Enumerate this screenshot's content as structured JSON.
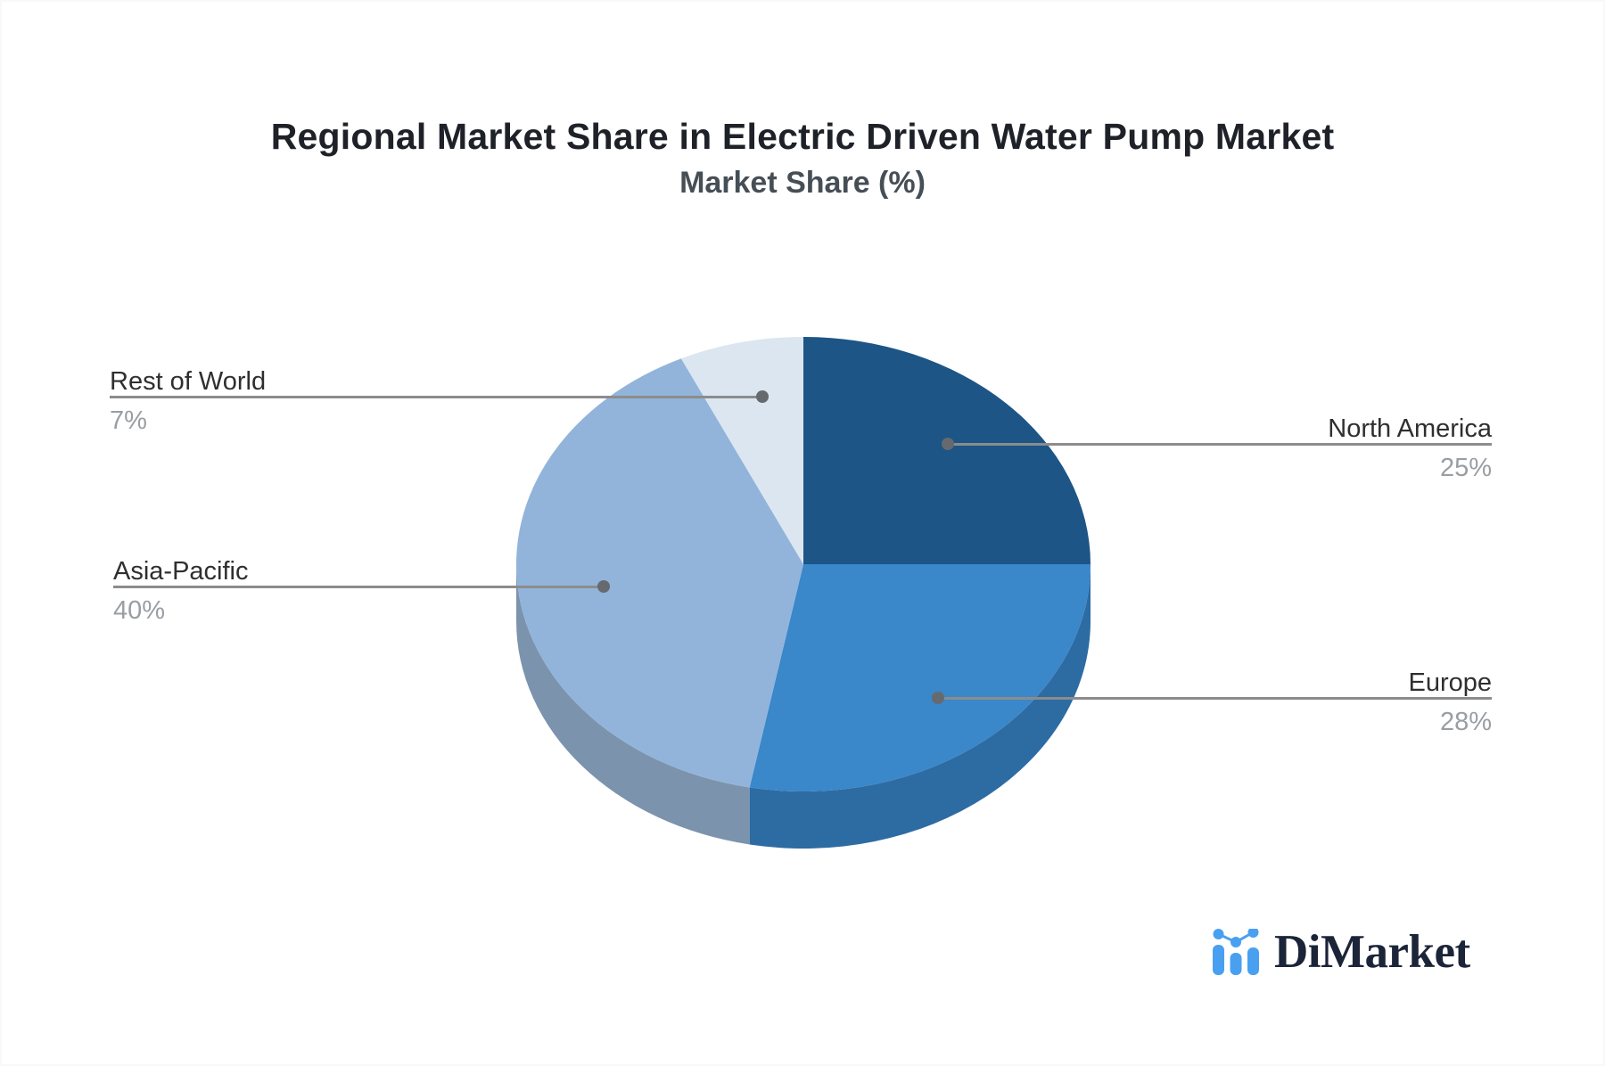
{
  "header": {
    "title": "Regional Market Share in Electric Driven Water Pump Market",
    "subtitle": "Market Share (%)"
  },
  "chart_data": {
    "type": "pie",
    "title": "Regional Market Share in Electric Driven Water Pump Market",
    "subtitle": "Market Share (%)",
    "unit": "percent",
    "style": "3d",
    "start_angle_deg": 0,
    "direction": "clockwise",
    "legend": "callout-labels",
    "slices": [
      {
        "label": "North America",
        "value": 25,
        "value_label": "25%",
        "color": "#1c5586",
        "side_color": "#164468"
      },
      {
        "label": "Europe",
        "value": 28,
        "value_label": "28%",
        "color": "#3a87c9",
        "side_color": "#2d6ba3"
      },
      {
        "label": "Asia-Pacific",
        "value": 40,
        "value_label": "40%",
        "color": "#92b4da",
        "side_color": "#7b93ad"
      },
      {
        "label": "Rest of World",
        "value": 7,
        "value_label": "7%",
        "color": "#dce6f1",
        "side_color": "#c3d2e4"
      }
    ]
  },
  "callout_colors": {
    "label_text": "#2f2f2f",
    "value_text": "#999ea3",
    "leader_line": "#8c8c8c"
  },
  "logo": {
    "text": "DiMarket",
    "icon": "bar-chart-trend-icon",
    "text_color": "#1b2438",
    "accent_color": "#4aa0f0"
  }
}
